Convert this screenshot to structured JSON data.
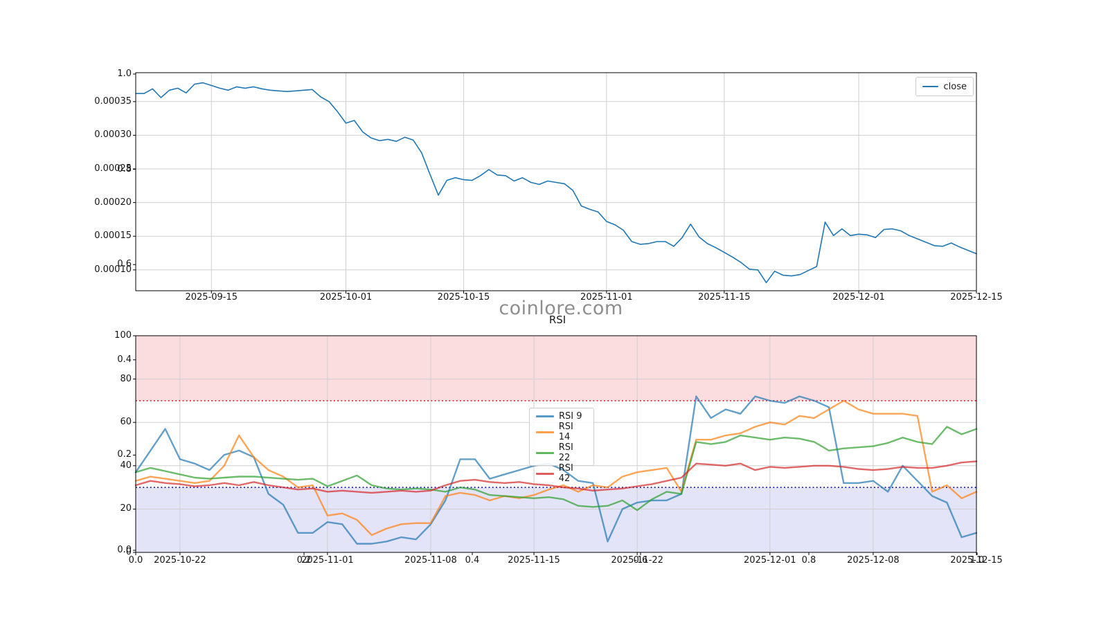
{
  "watermark": "coinlore.com",
  "ghost_axis": {
    "y_labels": [
      "1.0",
      "0.8",
      "0.6",
      "0.4",
      "0.2",
      "0.0"
    ],
    "x_labels": [
      "0.0",
      "0.2",
      "0.4",
      "0.6",
      "0.8",
      "1.0"
    ]
  },
  "chart_data": [
    {
      "type": "line",
      "name": "price-panel",
      "title": "",
      "xlabel": "",
      "ylabel": "",
      "x_start": "2025-09-06",
      "x_end": "2025-12-15",
      "x_frequency": "daily",
      "grid": true,
      "legend_position": "upper right",
      "ylim": [
        6.9e-05,
        0.000393
      ],
      "ytick_values": [
        0.00035,
        0.0003,
        0.00025,
        0.0002,
        0.00015,
        0.0001
      ],
      "ytick_labels": [
        "0.00035",
        "0.00030",
        "0.00025",
        "0.00020",
        "0.00015",
        "0.00010"
      ],
      "xtick_labels": [
        "2025-09-15",
        "2025-10-01",
        "2025-10-15",
        "2025-11-01",
        "2025-11-15",
        "2025-12-01",
        "2025-12-15"
      ],
      "series": [
        {
          "name": "close",
          "color": "#1f77b4",
          "values": [
            0.000362,
            0.000362,
            0.000369,
            0.000356,
            0.000367,
            0.00037,
            0.000363,
            0.000376,
            0.000378,
            0.000374,
            0.00037,
            0.000367,
            0.000372,
            0.00037,
            0.000372,
            0.000369,
            0.000367,
            0.000366,
            0.000365,
            0.000366,
            0.000367,
            0.000368,
            0.000357,
            0.00035,
            0.000335,
            0.000318,
            0.000322,
            0.000305,
            0.000296,
            0.000292,
            0.000294,
            0.000291,
            0.000297,
            0.000293,
            0.000274,
            0.000242,
            0.000211,
            0.000233,
            0.000237,
            0.000234,
            0.000233,
            0.00024,
            0.000249,
            0.000241,
            0.00024,
            0.000232,
            0.000237,
            0.00023,
            0.000227,
            0.000232,
            0.00023,
            0.000228,
            0.000218,
            0.000195,
            0.00019,
            0.000186,
            0.000172,
            0.000167,
            0.000159,
            0.000142,
            0.000138,
            0.000139,
            0.000142,
            0.000142,
            0.000135,
            0.000148,
            0.000168,
            0.000149,
            0.000139,
            0.000133,
            0.000126,
            0.000119,
            0.000111,
            0.000101,
            0.0001,
            8.1e-05,
            9.8e-05,
            9.2e-05,
            9.1e-05,
            9.3e-05,
            9.9e-05,
            0.000105,
            0.000171,
            0.000151,
            0.000161,
            0.000151,
            0.000153,
            0.000152,
            0.000148,
            0.00016,
            0.000161,
            0.000158,
            0.000151,
            0.000146,
            0.000141,
            0.000136,
            0.000135,
            0.00014,
            0.000134,
            0.000129,
            0.000124
          ]
        }
      ]
    },
    {
      "type": "line",
      "name": "rsi-panel",
      "title": "RSI",
      "xlabel": "",
      "ylabel": "",
      "x_start": "2025-10-19",
      "x_end": "2025-12-15",
      "x_frequency": "daily",
      "grid": true,
      "legend_position": "center",
      "ylim": [
        0,
        100
      ],
      "ytick_values": [
        100,
        80,
        60,
        40,
        20,
        0
      ],
      "ytick_labels": [
        "100",
        "80",
        "60",
        "40",
        "20",
        "0"
      ],
      "xtick_labels": [
        "2025-10-22",
        "2025-11-01",
        "2025-11-08",
        "2025-11-15",
        "2025-11-22",
        "2025-12-01",
        "2025-12-08",
        "2025-12-15"
      ],
      "bands": [
        {
          "from": 70,
          "to": 100,
          "color": "#fbdcdf",
          "meaning": "overbought"
        },
        {
          "from": 0,
          "to": 30,
          "color": "#e4e4f8",
          "meaning": "oversold"
        }
      ],
      "hlines": [
        {
          "value": 70,
          "color": "#e02030",
          "style": "dotted"
        },
        {
          "value": 30,
          "color": "#1515b0",
          "style": "dotted"
        }
      ],
      "series": [
        {
          "name": "RSI 9",
          "color": "#1f77b4",
          "values": [
            37,
            47,
            57,
            43,
            41,
            38,
            45,
            47,
            44,
            27,
            22,
            9,
            9,
            14,
            13,
            4,
            4,
            5,
            7,
            6,
            13,
            24,
            43,
            43,
            34,
            36,
            38,
            40,
            41,
            38,
            33,
            32,
            5,
            20,
            23,
            24,
            24,
            27,
            72,
            62,
            66,
            64,
            72,
            70,
            69,
            72,
            70,
            67,
            32,
            32,
            33,
            28,
            40,
            33,
            26,
            23,
            7,
            9
          ]
        },
        {
          "name": "RSI 14",
          "color": "#ff7f0e",
          "values": [
            33,
            35,
            34,
            33,
            32,
            33,
            40,
            54,
            44,
            38,
            35,
            30,
            31,
            17,
            18,
            15,
            8,
            11,
            13,
            13.5,
            13.5,
            26,
            27.5,
            26.5,
            24,
            26,
            25,
            26.5,
            29,
            31,
            28,
            31,
            30,
            35,
            37,
            38,
            39,
            28,
            52,
            52,
            54,
            55,
            58,
            60,
            59,
            63,
            62,
            66,
            70,
            66,
            64,
            64,
            64,
            63,
            28,
            31,
            25,
            28
          ]
        },
        {
          "name": "RSI 22",
          "color": "#2ca02c",
          "values": [
            37,
            39,
            37.5,
            36,
            34.5,
            34,
            34.5,
            35,
            35,
            34.5,
            34,
            33.5,
            34,
            30.5,
            33,
            35.5,
            31,
            29.5,
            29,
            29.5,
            29,
            28,
            30,
            29,
            26.5,
            26,
            25.5,
            25,
            25.5,
            24.5,
            21.5,
            21,
            21.5,
            24,
            19.5,
            24.5,
            28,
            27,
            51,
            50,
            51,
            54,
            53,
            52,
            53,
            52.5,
            51,
            47,
            48,
            48.5,
            49,
            50.5,
            53,
            51,
            50,
            58,
            54.5,
            57
          ]
        },
        {
          "name": "RSI 42",
          "color": "#d62728",
          "values": [
            31,
            33,
            32,
            31.5,
            30.5,
            31,
            32,
            31,
            32.5,
            31,
            30,
            29,
            29.5,
            28,
            28.5,
            28,
            27.5,
            28,
            28.5,
            28,
            28.5,
            31,
            33,
            33.5,
            32.5,
            32,
            32.5,
            31.5,
            31,
            30,
            29.5,
            28.5,
            29,
            29.5,
            30.5,
            31.5,
            33,
            34.5,
            41,
            40.5,
            40,
            41,
            38,
            39.5,
            39,
            39.5,
            40,
            40,
            39.5,
            38.5,
            38,
            38.5,
            39.5,
            39,
            39,
            40,
            41.5,
            42
          ]
        }
      ]
    }
  ]
}
